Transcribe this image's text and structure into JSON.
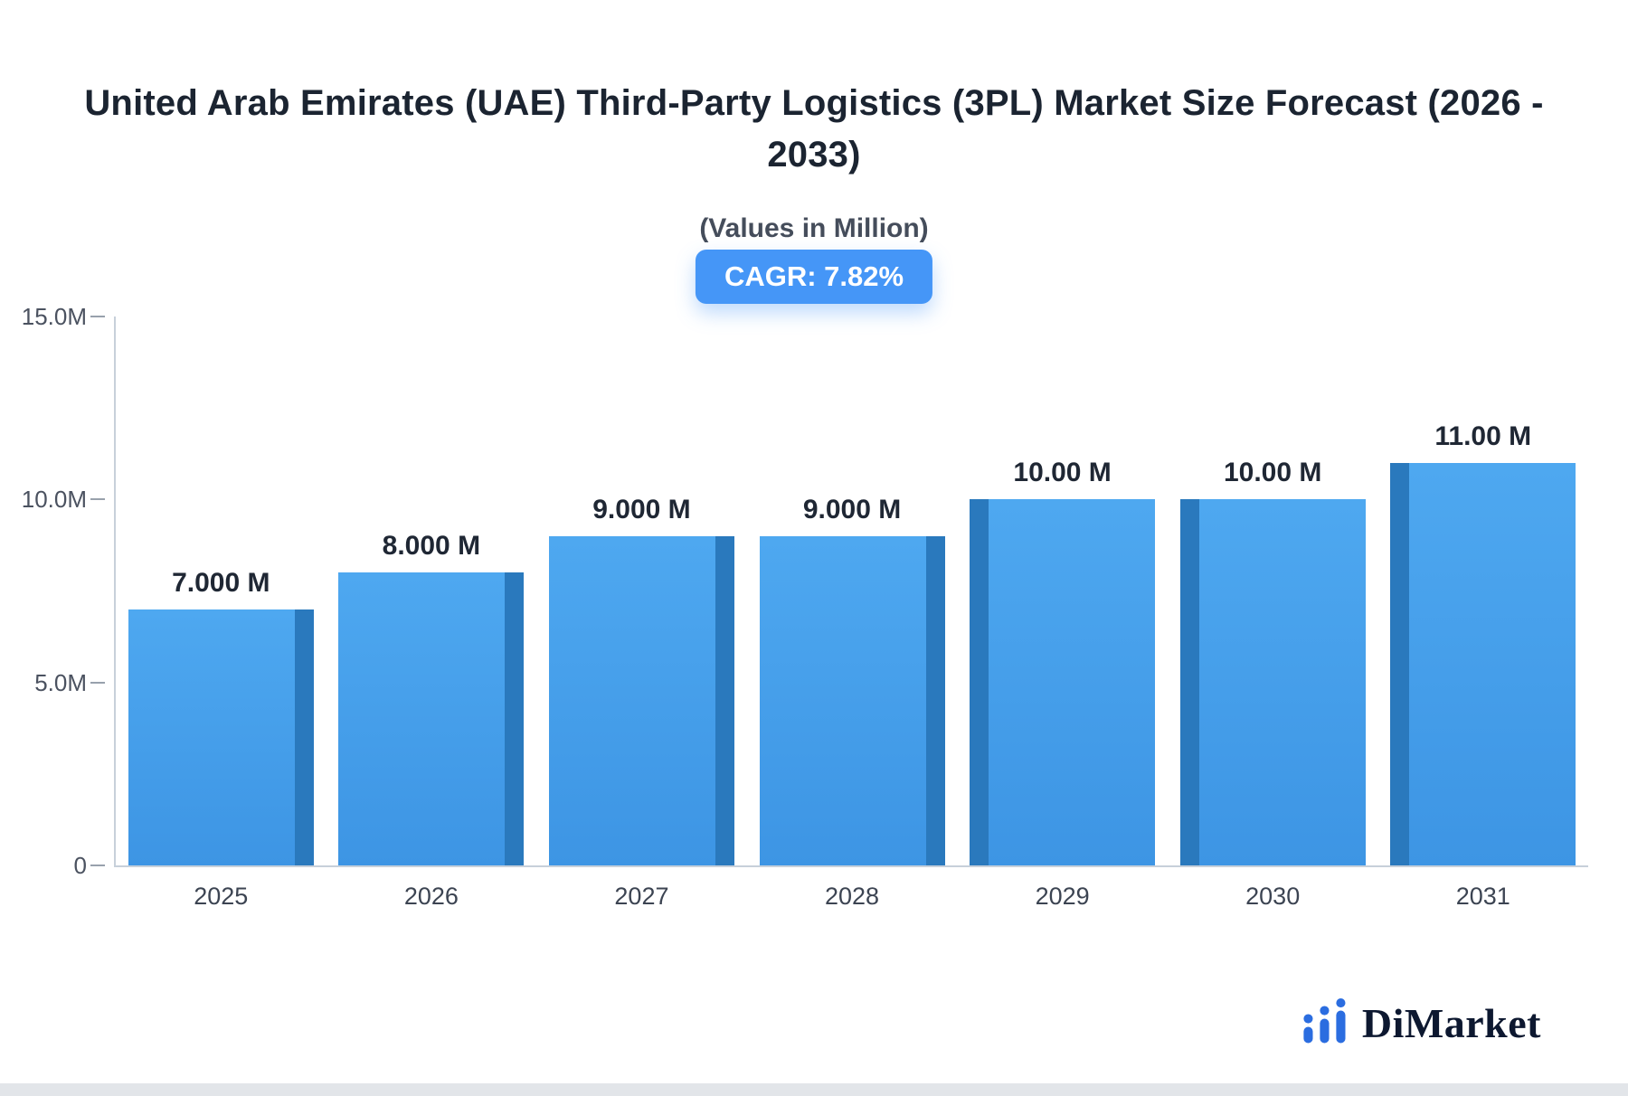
{
  "title": "United Arab Emirates (UAE) Third-Party Logistics (3PL) Market Size Forecast (2026 - 2033)",
  "subtitle": "(Values in Million)",
  "badge": "CAGR: 7.82%",
  "logo": {
    "text": "DiMarket"
  },
  "colors": {
    "badge_bg": "#4596f7",
    "logo_icon": "#2b6de0",
    "bar_top": "#4ea8f0",
    "bar_bottom": "#3d95e4",
    "bar_side": "#2a79bd"
  },
  "chart_data": {
    "type": "bar",
    "title": "United Arab Emirates (UAE) Third-Party Logistics (3PL) Market Size Forecast (2026 - 2033)",
    "subtitle": "(Values in Million)",
    "categories": [
      "2025",
      "2026",
      "2027",
      "2028",
      "2029",
      "2030",
      "2031"
    ],
    "values": [
      7,
      8,
      9,
      9,
      10,
      10,
      11
    ],
    "value_labels": [
      "7.000 M",
      "8.000 M",
      "9.000 M",
      "9.000 M",
      "10.00 M",
      "10.00 M",
      "11.00 M"
    ],
    "xlabel": "",
    "ylabel": "",
    "ylim": [
      0,
      15
    ],
    "yticks": [
      {
        "value": 0,
        "label": "0"
      },
      {
        "value": 5,
        "label": "5.0M"
      },
      {
        "value": 10,
        "label": "10.0M"
      },
      {
        "value": 15,
        "label": "15.0M"
      }
    ],
    "grid": false,
    "legend": false,
    "bar_color_top": "#4ea8f0",
    "bar_color_bottom": "#3d95e4",
    "bar_side_color": "#2a79bd"
  }
}
